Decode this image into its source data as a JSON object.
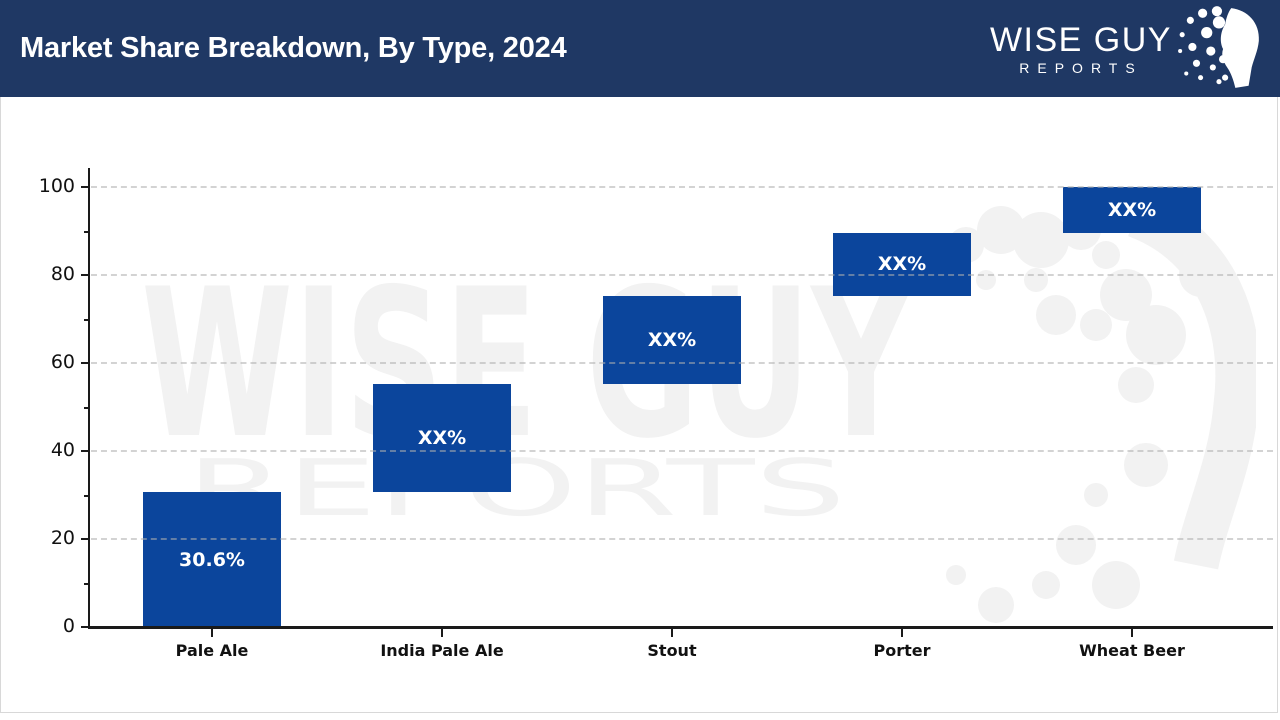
{
  "header": {
    "title": "Market Share Breakdown, By Type, 2024",
    "logo_line1": "WISE GUY",
    "logo_line2": "REPORTS",
    "bg_color": "#1F3864"
  },
  "watermark": {
    "line1": "WISE GUY",
    "line2": "REPORTS",
    "color": "#f2f2f2"
  },
  "chart_data": {
    "type": "bar",
    "subtype": "waterfall",
    "title": "Market Share Breakdown, By Type, 2024",
    "categories": [
      "Pale Ale",
      "India Pale Ale",
      "Stout",
      "Porter",
      "Wheat Beer"
    ],
    "segments": [
      {
        "category": "Pale Ale",
        "start": 0,
        "end": 30.6,
        "label": "30.6%"
      },
      {
        "category": "India Pale Ale",
        "start": 30.6,
        "end": 55.2,
        "label": "XX%"
      },
      {
        "category": "Stout",
        "start": 55.2,
        "end": 75.2,
        "label": "XX%"
      },
      {
        "category": "Porter",
        "start": 75.2,
        "end": 89.6,
        "label": "XX%"
      },
      {
        "category": "Wheat Beer",
        "start": 89.6,
        "end": 100,
        "label": "XX%"
      }
    ],
    "xlabel": "",
    "ylabel": "",
    "ylim": [
      0,
      100
    ],
    "yticks": [
      0,
      20,
      40,
      60,
      80,
      100
    ],
    "grid": "horizontal-dashed",
    "legend": "none",
    "bar_color": "#0B459C",
    "bar_label_color": "#FFFFFF",
    "axis_color": "#1a1a1a",
    "tick_label_color": "#111111",
    "grid_color": "rgba(175,175,175,0.55)"
  }
}
